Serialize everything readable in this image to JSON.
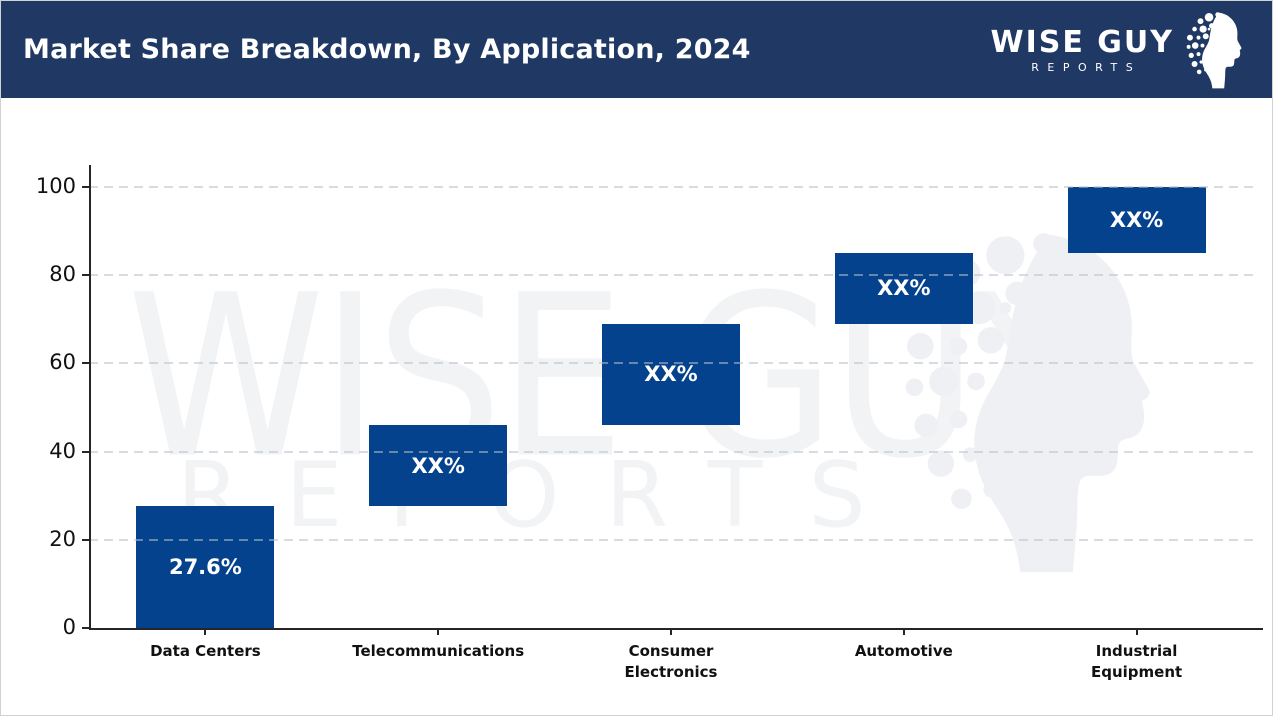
{
  "header": {
    "title": "Market Share Breakdown, By Application, 2024",
    "brand": {
      "name": "WISE GUY",
      "sub": "REPORTS"
    },
    "bg_color": "#1f3864"
  },
  "watermark": {
    "line1": "WISE GUY",
    "line2": "REPORTS"
  },
  "chart_data": {
    "type": "bar",
    "subtype": "waterfall",
    "title": "Market Share Breakdown, By Application, 2024",
    "categories": [
      "Data Centers",
      "Telecommunications",
      "Consumer\nElectronics",
      "Automotive",
      "Industrial\nEquipment"
    ],
    "segments": [
      {
        "start": 0,
        "end": 27.6,
        "label": "27.6%"
      },
      {
        "start": 27.6,
        "end": 46,
        "label": "XX%"
      },
      {
        "start": 46,
        "end": 69,
        "label": "XX%"
      },
      {
        "start": 69,
        "end": 85,
        "label": "XX%"
      },
      {
        "start": 85,
        "end": 100,
        "label": "XX%"
      }
    ],
    "ylim": [
      0,
      105
    ],
    "yticks": [
      0,
      20,
      40,
      60,
      80,
      100
    ],
    "grid": "horizontal dashed, drawn over bars",
    "legend": "none",
    "bar_color": "#05428e",
    "label_color": "#ffffff",
    "axis_color": "#262626"
  }
}
